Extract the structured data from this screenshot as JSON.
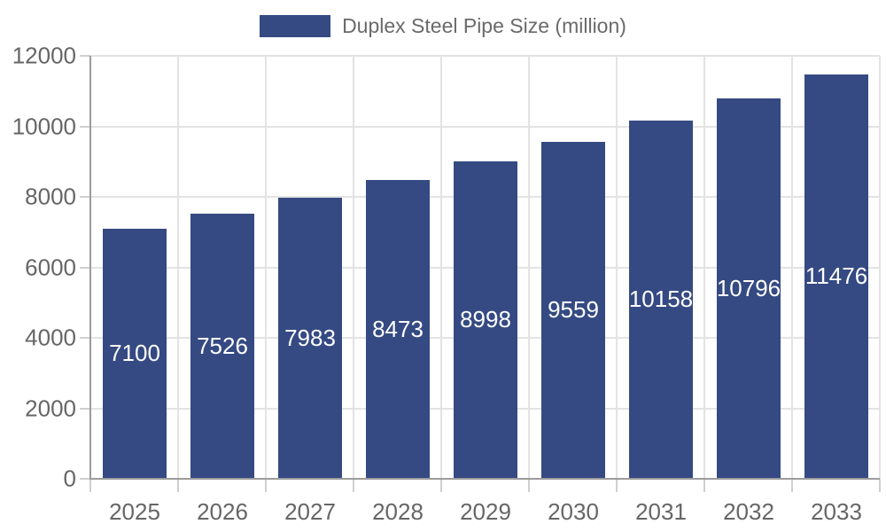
{
  "legend": {
    "label": "Duplex Steel Pipe Size (million)"
  },
  "chart_data": {
    "type": "bar",
    "title": "Duplex Steel Pipe Size (million)",
    "series_name": "Duplex Steel Pipe Size (million)",
    "categories": [
      "2025",
      "2026",
      "2027",
      "2028",
      "2029",
      "2030",
      "2031",
      "2032",
      "2033"
    ],
    "values": [
      7100,
      7526,
      7983,
      8473,
      8998,
      9559,
      10158,
      10796,
      11476
    ],
    "value_labels": [
      "7100",
      "7526",
      "7983",
      "8473",
      "8998",
      "9559",
      "10158",
      "10796",
      "11476"
    ],
    "ylim": [
      0,
      12000
    ],
    "yticks": [
      0,
      2000,
      4000,
      6000,
      8000,
      10000,
      12000
    ],
    "ytick_labels": [
      "0",
      "2000",
      "4000",
      "6000",
      "8000",
      "10000",
      "12000"
    ],
    "grid": true,
    "legend_position": "top",
    "value_label_position": "center-of-bar",
    "colors": {
      "bar": "#354a83",
      "value_label": "#ffffff",
      "axis_text": "#666666",
      "grid_line": "#e3e3e3",
      "axis_line": "#9b9b9b",
      "tick_line": "#cfcfcf"
    }
  }
}
